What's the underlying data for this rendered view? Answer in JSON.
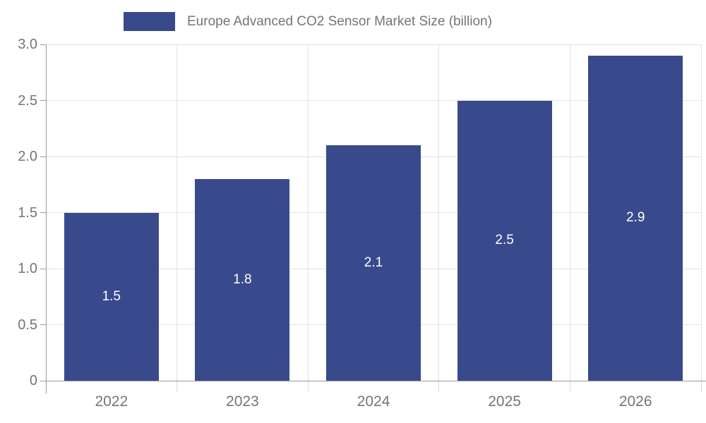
{
  "chart_data": {
    "type": "bar",
    "title": "Europe Advanced CO2 Sensor Market Size (billion)",
    "categories": [
      "2022",
      "2023",
      "2024",
      "2025",
      "2026"
    ],
    "series": [
      {
        "name": "Europe Advanced CO2 Sensor Market Size (billion)",
        "values": [
          1.5,
          1.8,
          2.1,
          2.5,
          2.9
        ]
      }
    ],
    "value_labels": [
      "1.5",
      "1.8",
      "2.1",
      "2.5",
      "2.9"
    ],
    "xlabel": "",
    "ylabel": "",
    "ylim": [
      0,
      3.0
    ],
    "yticks": [
      0,
      0.5,
      1.0,
      1.5,
      2.0,
      2.5,
      3.0
    ],
    "ytick_labels": [
      "0",
      "0.5",
      "1.0",
      "1.5",
      "2.0",
      "2.5",
      "3.0"
    ],
    "grid": true,
    "legend_position": "top",
    "colors": {
      "bar": "#394A8C",
      "grid": "#e3e3e3",
      "axis": "#9a9a9a",
      "tick": "#d9d9d9",
      "label": "#757575",
      "value_label": "#ffffff"
    }
  }
}
